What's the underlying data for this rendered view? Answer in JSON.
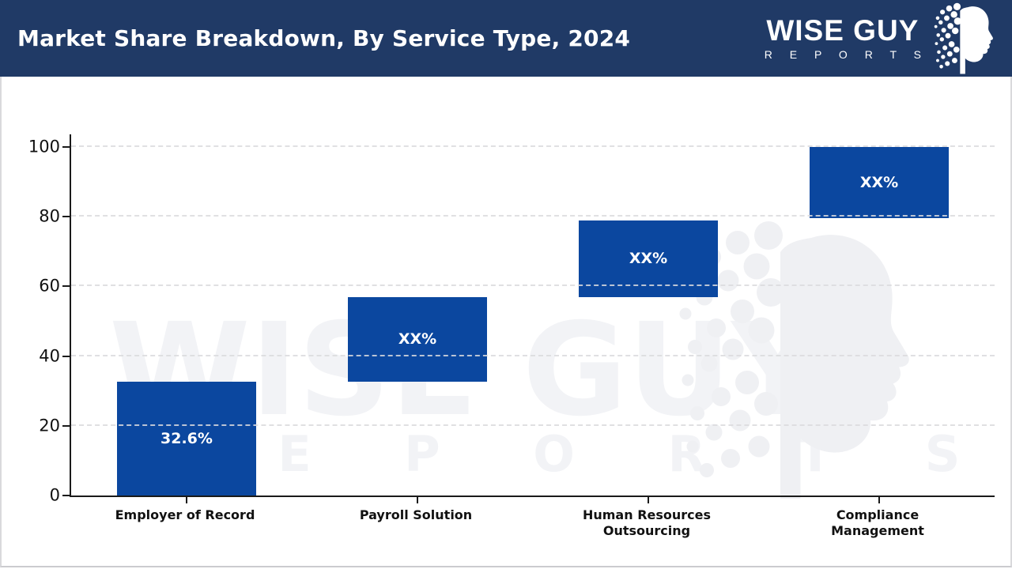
{
  "header": {
    "title": "Market Share Breakdown, By Service Type, 2024",
    "logo": {
      "line1": "WISE GUY",
      "line2": "R E P O R T S"
    }
  },
  "watermark": {
    "line1": "WISE GUY",
    "line2": "R E P O R T S"
  },
  "colors": {
    "header_bg": "#203a66",
    "bar": "#0b479f",
    "grid": "#dbdbdd",
    "axis": "#1a1a1a",
    "watermark": "#f2f3f6",
    "title_text": "#ffffff",
    "bar_label_text": "#ffffff"
  },
  "chart_data": {
    "type": "bar",
    "subtype": "floating-waterfall",
    "title": "Market Share Breakdown, By Service Type, 2024",
    "categories": [
      "Employer of Record",
      "Payroll Solution",
      "Human Resources\nOutsourcing",
      "Compliance\nManagement"
    ],
    "bars": [
      {
        "category": "Employer of Record",
        "start": 0,
        "end": 32.6,
        "label": "32.6%"
      },
      {
        "category": "Payroll Solution",
        "start": 32.6,
        "end": 57,
        "label": "XX%"
      },
      {
        "category": "Human Resources Outsourcing",
        "start": 57,
        "end": 79,
        "label": "XX%"
      },
      {
        "category": "Compliance Management",
        "start": 79.5,
        "end": 100,
        "label": "XX%"
      }
    ],
    "xlabel": "",
    "ylabel": "",
    "yticks": [
      0,
      20,
      40,
      60,
      80,
      100
    ],
    "ylim": [
      0,
      100
    ],
    "grid": "horizontal-dashed",
    "legend": "none",
    "bar_color": "#0b479f"
  }
}
